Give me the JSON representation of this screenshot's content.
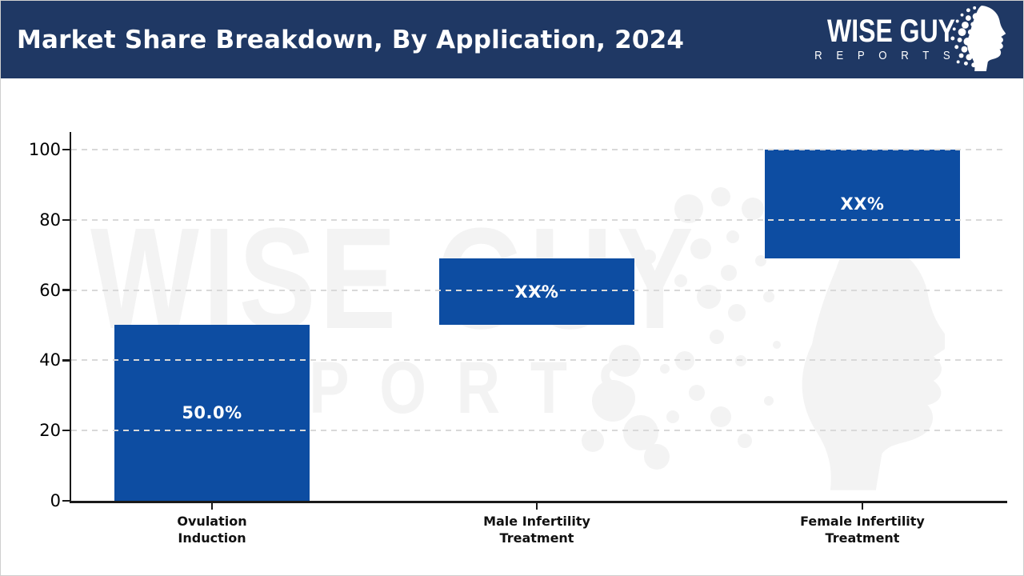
{
  "header": {
    "title": "Market Share Breakdown, By Application, 2024",
    "logo": {
      "wordmark": "WISE GUY",
      "subtext": "R E P O R T S"
    }
  },
  "watermark": {
    "line1": "WISE GUY",
    "line2": "REPORTS"
  },
  "chart_data": {
    "type": "bar",
    "variant": "floating-segment-bars",
    "title": "Market Share Breakdown, By Application, 2024",
    "categories": [
      "Ovulation\nInduction",
      "Male Infertility\nTreatment",
      "Female Infertility\nTreatment"
    ],
    "bars": [
      {
        "category": "Ovulation Induction",
        "start": 0,
        "end": 50,
        "label": "50.0%"
      },
      {
        "category": "Male Infertility Treatment",
        "start": 50,
        "end": 69,
        "label": "XX%"
      },
      {
        "category": "Female Infertility Treatment",
        "start": 69,
        "end": 100,
        "label": "XX%"
      }
    ],
    "xlabel": "",
    "ylabel": "",
    "yticks": [
      0,
      20,
      40,
      60,
      80,
      100
    ],
    "ylim": [
      0,
      105
    ],
    "grid": "dashed-horizontal",
    "legend": "none",
    "bar_color": "#0d4da2",
    "value_label_color": "#ffffff"
  },
  "colors": {
    "header_bg": "#1f3864",
    "bar": "#0d4da2",
    "grid": "#d9d9d9",
    "axis": "#1a1a1a",
    "watermark": "#f3f3f3"
  }
}
